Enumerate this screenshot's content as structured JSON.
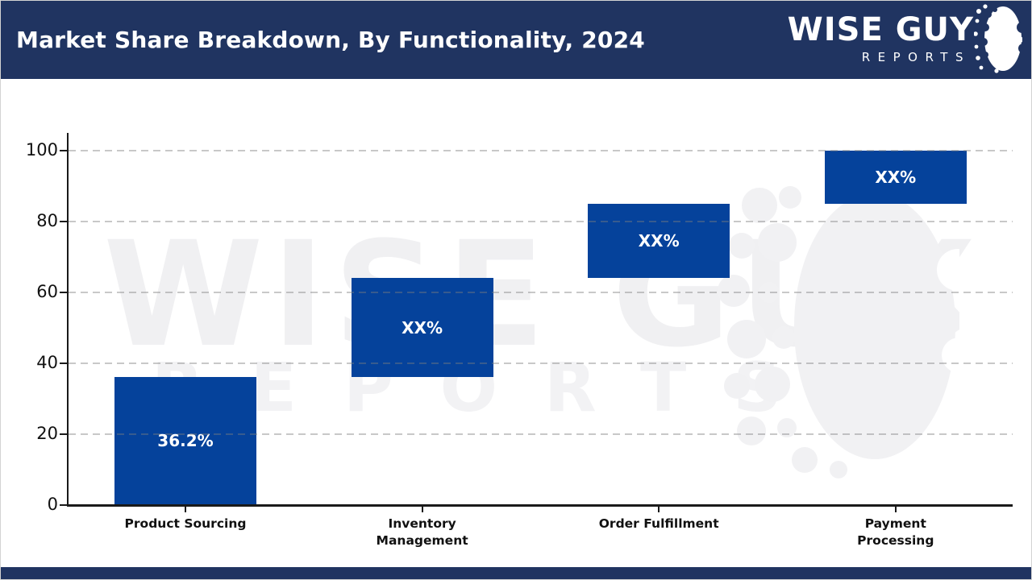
{
  "header": {
    "title": "Market Share Breakdown, By Functionality, 2024",
    "brand": {
      "name_top": "WISE GUY",
      "name_bottom": "REPORTS"
    }
  },
  "watermark": {
    "line1": "WISE GUY",
    "line2": "REPORTS"
  },
  "chart_data": {
    "type": "bar",
    "subtype": "floating-segment-waterfall",
    "title": "Market Share Breakdown, By Functionality, 2024",
    "categories": [
      "Product Sourcing",
      "Inventory\nManagement",
      "Order Fulfillment",
      "Payment Processing"
    ],
    "segments": [
      {
        "category": "Product Sourcing",
        "start": 0,
        "end": 36.2,
        "label": "36.2%"
      },
      {
        "category": "Inventory Management",
        "start": 36.2,
        "end": 64,
        "label": "XX%"
      },
      {
        "category": "Order Fulfillment",
        "start": 64,
        "end": 85,
        "label": "XX%"
      },
      {
        "category": "Payment Processing",
        "start": 85,
        "end": 100,
        "label": "XX%"
      }
    ],
    "xlabel": "",
    "ylabel": "",
    "ylim": [
      0,
      100
    ],
    "yticks": [
      0,
      20,
      40,
      60,
      80,
      100
    ],
    "grid": true,
    "grid_style": "dashed",
    "legend": false,
    "bar_color": "#05429B",
    "bar_label_color": "#FFFFFF"
  },
  "colors": {
    "header_bg": "#203461",
    "footer_bg": "#203461",
    "axis": "#1A1A1A",
    "watermark": "#F0F0F2"
  }
}
